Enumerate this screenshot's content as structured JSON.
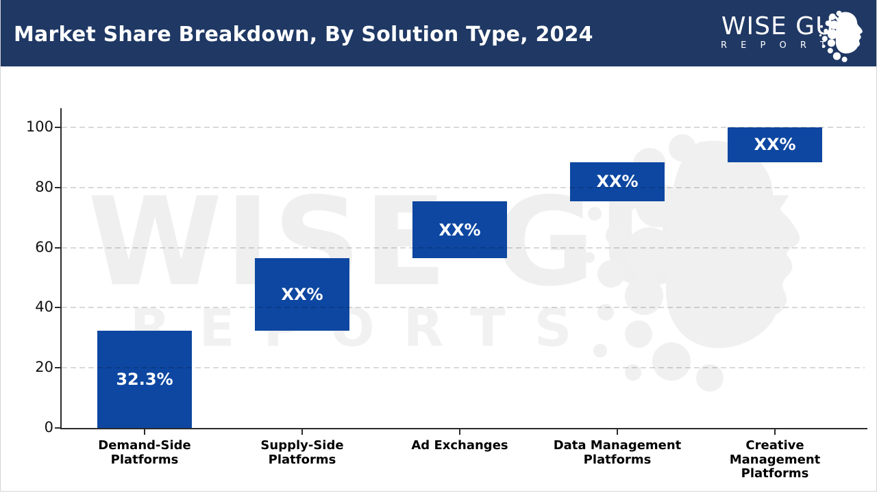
{
  "header": {
    "title": "Market Share Breakdown, By Solution Type, 2024",
    "logo": {
      "name": "WISE GUY",
      "sub": "R E P O R T S"
    }
  },
  "watermark": {
    "name": "WISE GUY",
    "sub": "REPORTS"
  },
  "chart_data": {
    "type": "bar",
    "subtype": "waterfall",
    "title": "Market Share Breakdown, By Solution Type, 2024",
    "unit": "percent market share",
    "categories": [
      "Demand-Side Platforms",
      "Supply-Side Platforms",
      "Ad Exchanges",
      "Data Management Platforms",
      "Creative Management Platforms"
    ],
    "tick_labels": [
      "Demand-Side\nPlatforms",
      "Supply-Side\nPlatforms",
      "Ad Exchanges",
      "Data Management\nPlatforms",
      "Creative\nManagement\nPlatforms"
    ],
    "segments": [
      {
        "category": "Demand-Side Platforms",
        "start": 0,
        "end": 32.3,
        "label": "32.3%"
      },
      {
        "category": "Supply-Side Platforms",
        "start": 32.3,
        "end": 56.4,
        "label": "XX%"
      },
      {
        "category": "Ad Exchanges",
        "start": 56.4,
        "end": 75.4,
        "label": "XX%"
      },
      {
        "category": "Data Management Platforms",
        "start": 75.4,
        "end": 88.4,
        "label": "XX%"
      },
      {
        "category": "Creative Management Platforms",
        "start": 88.4,
        "end": 100,
        "label": "XX%"
      }
    ],
    "yticks": [
      0,
      20,
      40,
      60,
      80,
      100
    ],
    "ylim": [
      0,
      107
    ],
    "grid": "horizontal-dashed",
    "legend": "none",
    "bar_color": "#0d47a1",
    "bar_label_color": "#ffffff"
  },
  "colors": {
    "header_bg": "#1f3864",
    "bar": "#0d47a1",
    "axis": "#2a2a2a",
    "watermark": "#efefef"
  }
}
